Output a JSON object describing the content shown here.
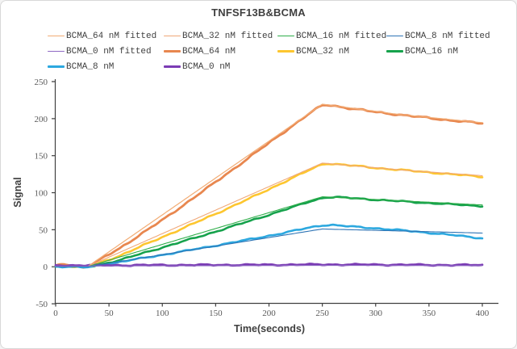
{
  "title": "TNFSF13B&BCMA",
  "axis": {
    "x_label": "Time(seconds)",
    "y_label": "Signal"
  },
  "legend": {
    "items": [
      {
        "label": "BCMA_64 nM fitted",
        "color": "#F2AC74",
        "kind": "fitted"
      },
      {
        "label": "BCMA_32 nM fitted",
        "color": "#F0A878",
        "kind": "fitted"
      },
      {
        "label": "BCMA_16 nM fitted",
        "color": "#2FAE4A",
        "kind": "fitted"
      },
      {
        "label": "BCMA_8 nM fitted",
        "color": "#2E74B5",
        "kind": "fitted"
      },
      {
        "label": "BCMA_0 nM fitted",
        "color": "#8E68C4",
        "kind": "fitted"
      },
      {
        "label": "BCMA_64 nM",
        "color": "#E8874F",
        "kind": "raw"
      },
      {
        "label": "BCMA_32 nM",
        "color": "#FDC62F",
        "kind": "raw"
      },
      {
        "label": "BCMA_16 nM",
        "color": "#16A24C",
        "kind": "raw"
      },
      {
        "label": "BCMA_8 nM",
        "color": "#2CA8DF",
        "kind": "raw"
      },
      {
        "label": "BCMA_0 nM",
        "color": "#7B3CB4",
        "kind": "raw"
      }
    ]
  },
  "chart_data": {
    "type": "line",
    "title": "TNFSF13B&BCMA",
    "xlabel": "Time(seconds)",
    "ylabel": "Signal",
    "xlim": [
      0,
      400
    ],
    "ylim": [
      -50,
      250
    ],
    "xticks": [
      0,
      50,
      100,
      150,
      200,
      250,
      300,
      350,
      400
    ],
    "yticks": [
      -50,
      0,
      50,
      100,
      150,
      200,
      250
    ],
    "grid": false,
    "legend_position": "top",
    "description": "SPR sensorgram: baseline 0-30 s, association 30-250 s, peak at 250 s, dissociation 250-400 s",
    "series": [
      {
        "name": "BCMA_64 nM",
        "kind": "raw",
        "color": "#E8874F",
        "width": 2.8,
        "noise": 1.4,
        "seed": 1,
        "points": [
          [
            0,
            1
          ],
          [
            4,
            2.5
          ],
          [
            8,
            4
          ],
          [
            13,
            2.5
          ],
          [
            19,
            0.5
          ],
          [
            26,
            -0.8
          ],
          [
            31,
            0.5
          ],
          [
            60,
            25
          ],
          [
            100,
            63
          ],
          [
            140,
            104
          ],
          [
            180,
            146
          ],
          [
            215,
            183
          ],
          [
            240,
            209
          ],
          [
            250,
            218
          ],
          [
            257,
            218.5
          ],
          [
            275,
            214
          ],
          [
            300,
            209
          ],
          [
            330,
            204
          ],
          [
            365,
            198.5
          ],
          [
            400,
            193.5
          ]
        ]
      },
      {
        "name": "BCMA_32 nM",
        "kind": "raw",
        "color": "#FDC62F",
        "width": 2.6,
        "noise": 1.2,
        "seed": 7,
        "points": [
          [
            0,
            0.5
          ],
          [
            8,
            1.5
          ],
          [
            15,
            0.5
          ],
          [
            26,
            -1
          ],
          [
            32,
            0
          ],
          [
            60,
            15
          ],
          [
            100,
            40
          ],
          [
            140,
            65
          ],
          [
            180,
            91
          ],
          [
            215,
            115
          ],
          [
            240,
            132
          ],
          [
            250,
            138.5
          ],
          [
            256,
            139.5
          ],
          [
            275,
            137
          ],
          [
            300,
            133.5
          ],
          [
            350,
            127.5
          ],
          [
            400,
            121.5
          ]
        ]
      },
      {
        "name": "BCMA_16 nM",
        "kind": "raw",
        "color": "#16A24C",
        "width": 2.6,
        "noise": 1.1,
        "seed": 13,
        "points": [
          [
            0,
            0.5
          ],
          [
            12,
            0.8
          ],
          [
            26,
            -0.5
          ],
          [
            33,
            0.3
          ],
          [
            60,
            9
          ],
          [
            100,
            26
          ],
          [
            140,
            43
          ],
          [
            180,
            61
          ],
          [
            215,
            77
          ],
          [
            240,
            89
          ],
          [
            252,
            93.5
          ],
          [
            262,
            94
          ],
          [
            280,
            92.5
          ],
          [
            300,
            90.5
          ],
          [
            350,
            86
          ],
          [
            400,
            82
          ]
        ]
      },
      {
        "name": "BCMA_8 nM",
        "kind": "raw",
        "color": "#2CA8DF",
        "width": 2.6,
        "noise": 1.1,
        "seed": 21,
        "points": [
          [
            0,
            0.2
          ],
          [
            15,
            0.3
          ],
          [
            27,
            -1
          ],
          [
            34,
            0.2
          ],
          [
            60,
            6.5
          ],
          [
            100,
            16
          ],
          [
            140,
            26
          ],
          [
            180,
            36.5
          ],
          [
            215,
            46
          ],
          [
            238,
            53
          ],
          [
            250,
            56
          ],
          [
            258,
            56.5
          ],
          [
            275,
            54.5
          ],
          [
            300,
            52
          ],
          [
            330,
            48.5
          ],
          [
            360,
            44.5
          ],
          [
            400,
            38.5
          ]
        ]
      },
      {
        "name": "BCMA_0 nM",
        "kind": "raw",
        "color": "#7B3CB4",
        "width": 2.8,
        "noise": 1.2,
        "seed": 34,
        "points": [
          [
            0,
            1.8
          ],
          [
            50,
            2
          ],
          [
            100,
            2.2
          ],
          [
            150,
            2.4
          ],
          [
            200,
            2.6
          ],
          [
            250,
            3
          ],
          [
            300,
            2.8
          ],
          [
            350,
            2.4
          ],
          [
            400,
            2.2
          ]
        ]
      },
      {
        "name": "BCMA_64 nM fitted",
        "kind": "fitted",
        "color": "#F2AC74",
        "width": 1.2,
        "noise": 0,
        "seed": 0,
        "points": [
          [
            0,
            0.3
          ],
          [
            30,
            0.3
          ],
          [
            250,
            219.5
          ],
          [
            320,
            206
          ],
          [
            400,
            194.5
          ]
        ]
      },
      {
        "name": "BCMA_32 nM fitted",
        "kind": "fitted",
        "color": "#F0A878",
        "width": 1.1,
        "noise": 0,
        "seed": 0,
        "points": [
          [
            0,
            0.3
          ],
          [
            30,
            0.3
          ],
          [
            250,
            140
          ],
          [
            330,
            130
          ],
          [
            400,
            123
          ]
        ]
      },
      {
        "name": "BCMA_16 nM fitted",
        "kind": "fitted",
        "color": "#2FAE4A",
        "width": 1.1,
        "noise": 0,
        "seed": 0,
        "points": [
          [
            0,
            0.2
          ],
          [
            30,
            0.2
          ],
          [
            250,
            94.5
          ],
          [
            400,
            83.5
          ]
        ]
      },
      {
        "name": "BCMA_8 nM fitted",
        "kind": "fitted",
        "color": "#2E74B5",
        "width": 1.1,
        "noise": 0,
        "seed": 0,
        "points": [
          [
            0,
            0.1
          ],
          [
            30,
            0.1
          ],
          [
            250,
            51
          ],
          [
            400,
            45.5
          ]
        ]
      },
      {
        "name": "BCMA_0 nM fitted",
        "kind": "fitted",
        "color": "#8E68C4",
        "width": 1.1,
        "noise": 0,
        "seed": 0,
        "points": [
          [
            0,
            1
          ],
          [
            30,
            1
          ],
          [
            250,
            1.8
          ],
          [
            400,
            1.5
          ]
        ]
      }
    ]
  }
}
